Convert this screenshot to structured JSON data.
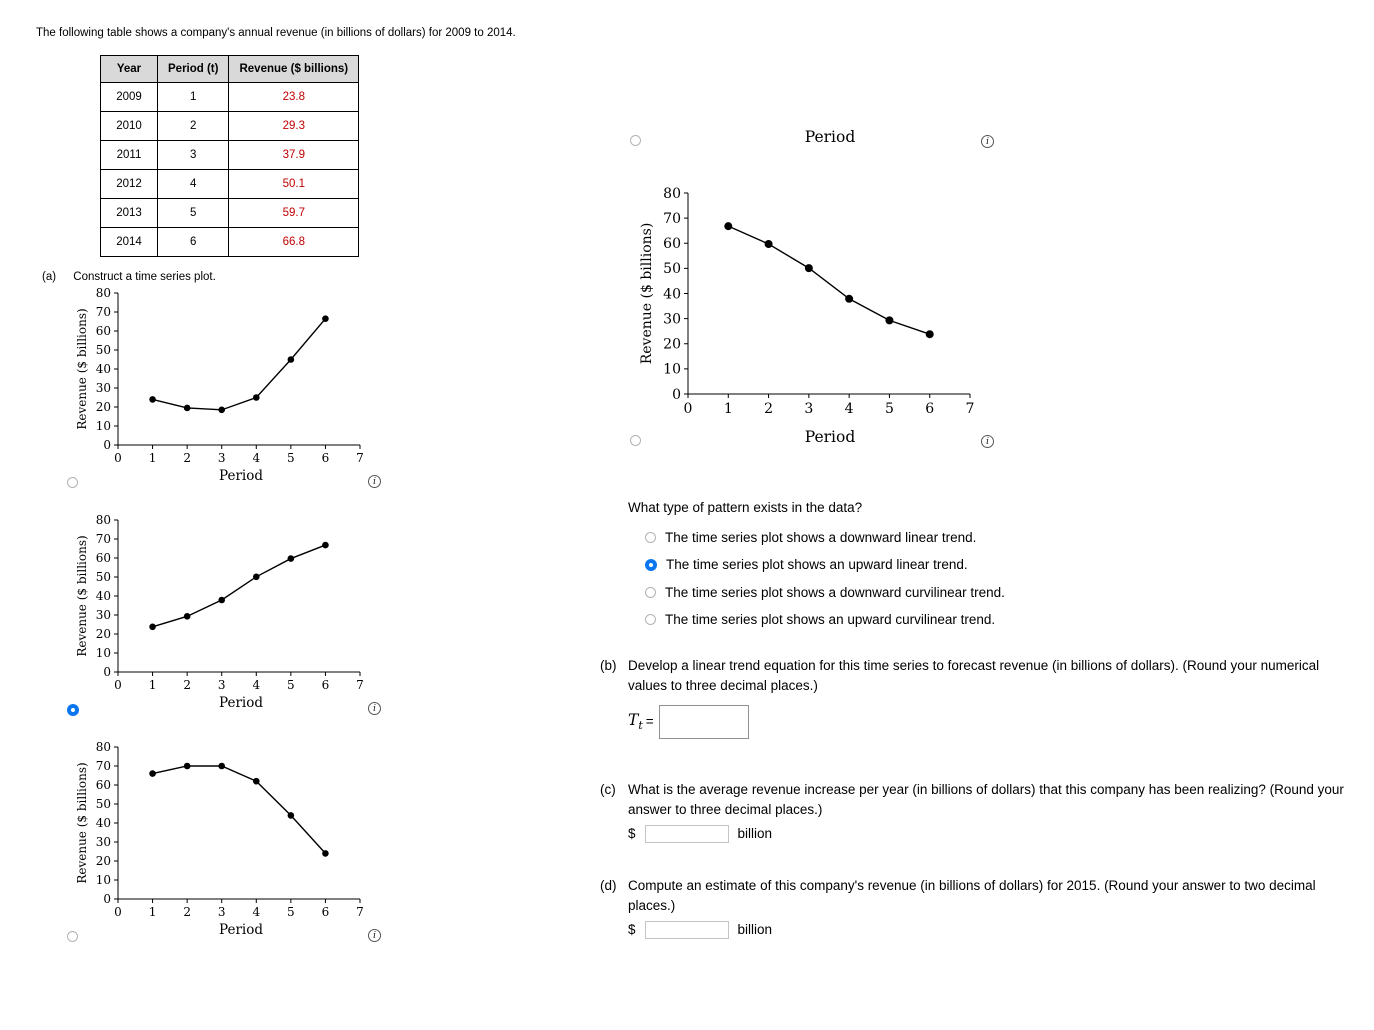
{
  "colors": {
    "value_red": "#c00000",
    "radio_selected": "#0b76ef",
    "table_header_bg": "#d9d9d9"
  },
  "icons": {
    "info": "i"
  },
  "intro": "The following table shows a company's annual revenue (in billions of dollars) for 2009 to 2014.",
  "table": {
    "headers": [
      "Year",
      "Period (t)",
      "Revenue ($ billions)"
    ],
    "rows": [
      [
        "2009",
        "1",
        "23.8"
      ],
      [
        "2010",
        "2",
        "29.3"
      ],
      [
        "2011",
        "3",
        "37.9"
      ],
      [
        "2012",
        "4",
        "50.1"
      ],
      [
        "2013",
        "5",
        "59.7"
      ],
      [
        "2014",
        "6",
        "66.8"
      ]
    ]
  },
  "part_a": {
    "label": "(a)",
    "text": "Construct a time series plot."
  },
  "chart_data": [
    {
      "id": "plot-upward-curvilinear",
      "type": "line",
      "x": [
        1,
        2,
        3,
        4,
        5,
        6
      ],
      "y": [
        24,
        19.5,
        18.5,
        25,
        45,
        66.5
      ],
      "xlabel": "Period",
      "ylabel": "Revenue ($ billions)",
      "xlim": [
        0,
        7
      ],
      "ylim": [
        0,
        80
      ],
      "xticks": [
        0,
        1,
        2,
        3,
        4,
        5,
        6,
        7
      ],
      "yticks": [
        0,
        10,
        20,
        30,
        40,
        50,
        60,
        70,
        80
      ],
      "selected": false
    },
    {
      "id": "plot-upward-linear",
      "type": "line",
      "x": [
        1,
        2,
        3,
        4,
        5,
        6
      ],
      "y": [
        23.8,
        29.3,
        37.9,
        50.1,
        59.7,
        66.8
      ],
      "xlabel": "Period",
      "ylabel": "Revenue ($ billions)",
      "xlim": [
        0,
        7
      ],
      "ylim": [
        0,
        80
      ],
      "xticks": [
        0,
        1,
        2,
        3,
        4,
        5,
        6,
        7
      ],
      "yticks": [
        0,
        10,
        20,
        30,
        40,
        50,
        60,
        70,
        80
      ],
      "selected": true
    },
    {
      "id": "plot-downward-curvilinear",
      "type": "line",
      "x": [
        1,
        2,
        3,
        4,
        5,
        6
      ],
      "y": [
        66,
        70,
        70,
        62,
        44,
        24
      ],
      "xlabel": "Period",
      "ylabel": "Revenue ($ billions)",
      "xlim": [
        0,
        7
      ],
      "ylim": [
        0,
        80
      ],
      "xticks": [
        0,
        1,
        2,
        3,
        4,
        5,
        6,
        7
      ],
      "yticks": [
        0,
        10,
        20,
        30,
        40,
        50,
        60,
        70,
        80
      ],
      "selected": false
    },
    {
      "id": "plot-downward-linear",
      "type": "line",
      "x": [
        1,
        2,
        3,
        4,
        5,
        6
      ],
      "y": [
        66.8,
        59.7,
        50.1,
        37.9,
        29.3,
        23.8
      ],
      "xlabel": "Period",
      "ylabel": "Revenue ($ billions)",
      "xlim": [
        0,
        7
      ],
      "ylim": [
        0,
        80
      ],
      "xticks": [
        0,
        1,
        2,
        3,
        4,
        5,
        6,
        7
      ],
      "yticks": [
        0,
        10,
        20,
        30,
        40,
        50,
        60,
        70,
        80
      ],
      "selected": false
    }
  ],
  "right_panel": {
    "top_label": "Period",
    "top_selected": false
  },
  "question": {
    "text": "What type of pattern exists in the data?",
    "options": [
      {
        "label": "The time series plot shows a downward linear trend.",
        "selected": false
      },
      {
        "label": "The time series plot shows an upward linear trend.",
        "selected": true
      },
      {
        "label": "The time series plot shows a downward curvilinear trend.",
        "selected": false
      },
      {
        "label": "The time series plot shows an upward curvilinear trend.",
        "selected": false
      }
    ]
  },
  "part_b": {
    "label": "(b)",
    "text": "Develop a linear trend equation for this time series to forecast revenue (in billions of dollars). (Round your numerical values to three decimal places.)",
    "equation_lhs": "T",
    "equation_sub": "t",
    "equals": "=",
    "input_value": ""
  },
  "part_c": {
    "label": "(c)",
    "text": "What is the average revenue increase per year (in billions of dollars) that this company has been realizing? (Round your answer to three decimal places.)",
    "currency": "$",
    "unit": "billion",
    "input_value": ""
  },
  "part_d": {
    "label": "(d)",
    "text": "Compute an estimate of this company's revenue (in billions of dollars) for 2015. (Round your answer to two decimal places.)",
    "currency": "$",
    "unit": "billion",
    "input_value": ""
  }
}
